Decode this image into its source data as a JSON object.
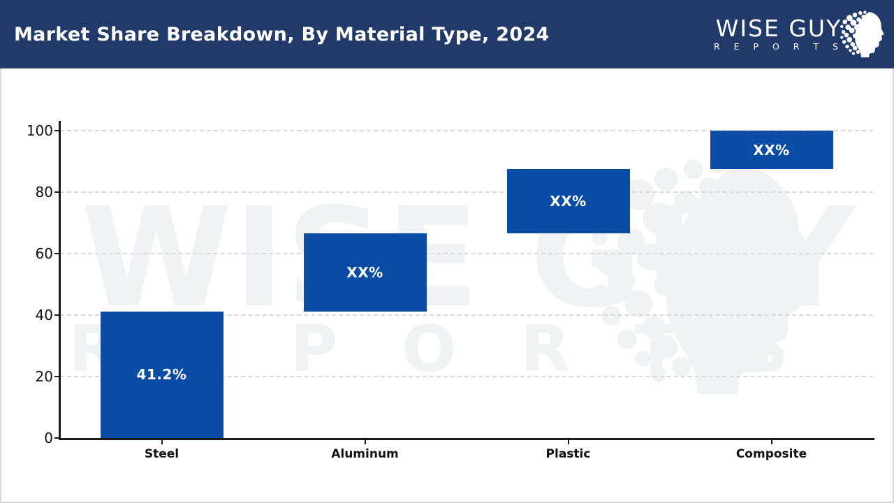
{
  "header": {
    "title": "Market Share Breakdown, By Material Type, 2024"
  },
  "logo": {
    "line1": "WISE GUY",
    "line2": "R E P O R T S"
  },
  "watermark": {
    "line1": "WISE GUY",
    "line2": "R E P O R T S"
  },
  "chart_data": {
    "type": "bar",
    "subtype": "stacked-waterfall",
    "title": "Market Share Breakdown, By Material Type, 2024",
    "categories": [
      "Steel",
      "Aluminum",
      "Plastic",
      "Composite"
    ],
    "segments": [
      {
        "category": "Steel",
        "start": 0,
        "end": 41.2,
        "label": "41.2%"
      },
      {
        "category": "Aluminum",
        "start": 41.2,
        "end": 66.7,
        "label": "XX%"
      },
      {
        "category": "Plastic",
        "start": 66.7,
        "end": 87.5,
        "label": "XX%"
      },
      {
        "category": "Composite",
        "start": 87.5,
        "end": 100,
        "label": "XX%"
      }
    ],
    "xlabel": "",
    "ylabel": "",
    "ylim": [
      0,
      100
    ],
    "yticks": [
      0,
      20,
      40,
      60,
      80,
      100
    ],
    "grid": "horizontal-dashed",
    "legend": "none",
    "bar_color": "#0b4da5",
    "bar_label_color": "#ffffff"
  },
  "colors": {
    "header_bg": "#213a69",
    "bar": "#0b4da5",
    "grid": "#d9d9d9",
    "axis": "#1a1a1a",
    "watermark": "#f1f2f4",
    "page_border": "#d8d8d8"
  }
}
